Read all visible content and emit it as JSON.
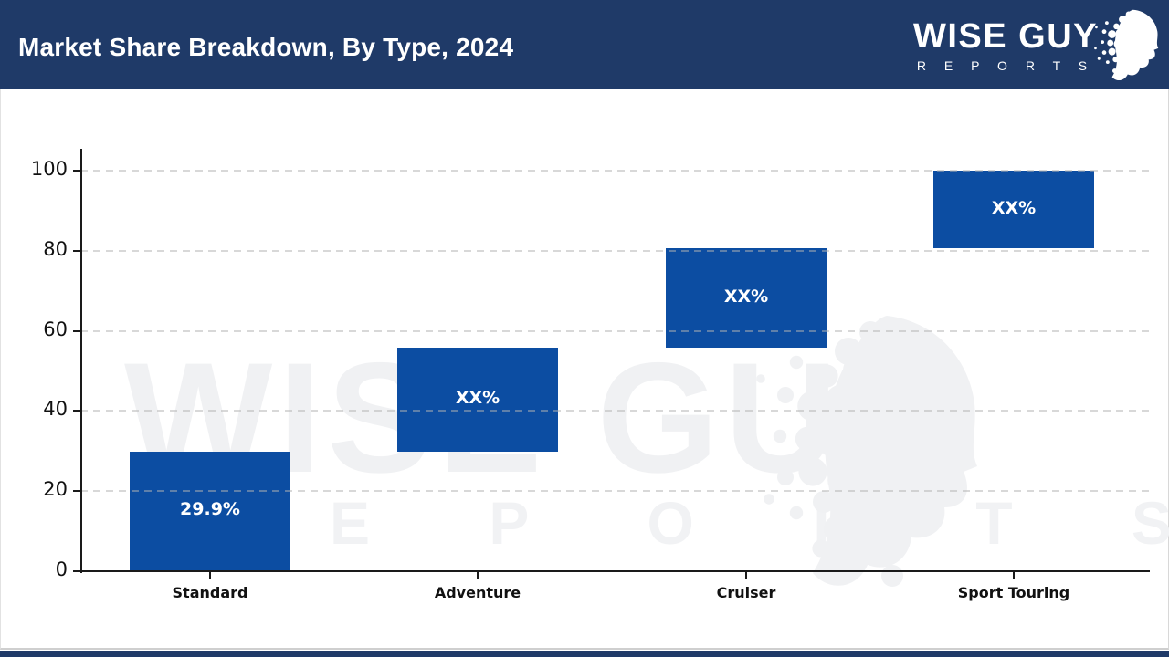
{
  "header": {
    "title": "Market Share Breakdown, By Type, 2024",
    "logo_line1": "WISE GUY",
    "logo_line2": "R E P O R T S"
  },
  "watermark": {
    "line1": "WISE GUY",
    "line2": "R E P O R T S"
  },
  "colors": {
    "header_bg": "#1f3a68",
    "footer_bg": "#1f3a68",
    "bar": "#0c4da2",
    "gridline": "#d9d9d9",
    "axis": "#1a1a1a",
    "watermark": "#f0f1f3"
  },
  "chart_data": {
    "type": "bar",
    "subtype": "waterfall",
    "title": "Market Share Breakdown, By Type, 2024",
    "xlabel": "",
    "ylabel": "",
    "categories": [
      "Standard",
      "Adventure",
      "Cruiser",
      "Sport Touring"
    ],
    "segments": [
      {
        "category": "Standard",
        "start": 0,
        "end": 29.9,
        "label": "29.9%"
      },
      {
        "category": "Adventure",
        "start": 29.9,
        "end": 55.8,
        "label": "XX%"
      },
      {
        "category": "Cruiser",
        "start": 55.8,
        "end": 80.6,
        "label": "XX%"
      },
      {
        "category": "Sport Touring",
        "start": 80.6,
        "end": 100,
        "label": "XX%"
      }
    ],
    "yticks": [
      0,
      20,
      40,
      60,
      80,
      100
    ],
    "ylim": [
      0,
      105
    ],
    "grid": "horizontal-dashed",
    "legend": "none"
  }
}
